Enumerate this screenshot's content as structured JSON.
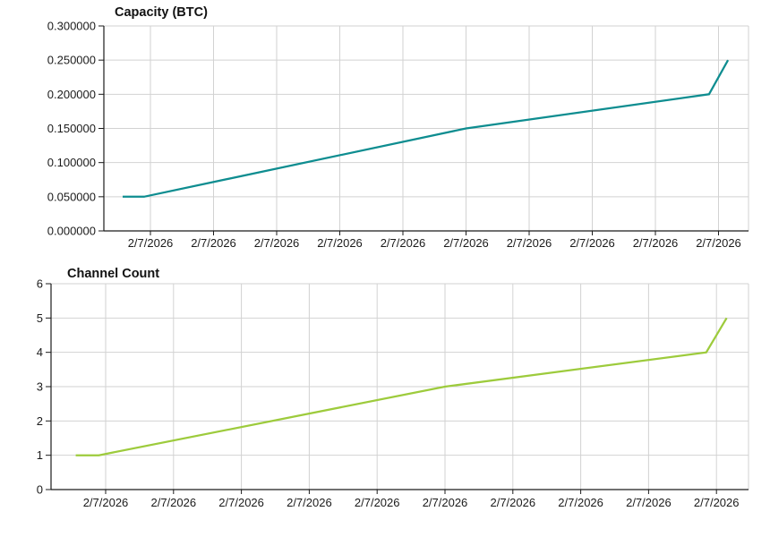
{
  "colors": {
    "background": "#ffffff",
    "grid": "#d2d2d2",
    "axis": "#1b1b1b",
    "text": "#1b1b1b",
    "capacity_line": "#0E8D90",
    "channel_line": "#9DCB3C"
  },
  "chart_data": [
    {
      "type": "line",
      "title": "Capacity (BTC)",
      "legend": "none",
      "grid": true,
      "x_axis": {
        "tick_labels": [
          "2/7/2026",
          "2/7/2026",
          "2/7/2026",
          "2/7/2026",
          "2/7/2026",
          "2/7/2026",
          "2/7/2026",
          "2/7/2026",
          "2/7/2026",
          "2/7/2026"
        ]
      },
      "y_axis": {
        "min": 0,
        "max": 0.3,
        "step": 0.05,
        "tick_labels": [
          "0.300000",
          "0.250000",
          "0.200000",
          "0.150000",
          "0.100000",
          "0.050000",
          "0.000000"
        ]
      },
      "series": [
        {
          "name": "Capacity (BTC)",
          "color": "#0E8D90",
          "points": [
            {
              "x": "2/7/2026",
              "tick_pos": -0.44,
              "y": 0.05
            },
            {
              "x": "2/7/2026",
              "tick_pos": -0.1,
              "y": 0.05
            },
            {
              "x": "2/7/2026",
              "tick_pos": 5.0,
              "y": 0.15
            },
            {
              "x": "2/7/2026",
              "tick_pos": 8.85,
              "y": 0.2
            },
            {
              "x": "2/7/2026",
              "tick_pos": 9.15,
              "y": 0.25
            }
          ]
        }
      ]
    },
    {
      "type": "line",
      "title": "Channel Count",
      "legend": "none",
      "grid": true,
      "x_axis": {
        "tick_labels": [
          "2/7/2026",
          "2/7/2026",
          "2/7/2026",
          "2/7/2026",
          "2/7/2026",
          "2/7/2026",
          "2/7/2026",
          "2/7/2026",
          "2/7/2026",
          "2/7/2026"
        ]
      },
      "y_axis": {
        "min": 0,
        "max": 6,
        "step": 1,
        "tick_labels": [
          "6",
          "5",
          "4",
          "3",
          "2",
          "1",
          "0"
        ]
      },
      "series": [
        {
          "name": "Channel Count",
          "color": "#9DCB3C",
          "points": [
            {
              "x": "2/7/2026",
              "tick_pos": -0.44,
              "y": 1
            },
            {
              "x": "2/7/2026",
              "tick_pos": -0.1,
              "y": 1
            },
            {
              "x": "2/7/2026",
              "tick_pos": 5.0,
              "y": 3
            },
            {
              "x": "2/7/2026",
              "tick_pos": 8.85,
              "y": 4
            },
            {
              "x": "2/7/2026",
              "tick_pos": 9.15,
              "y": 5
            }
          ]
        }
      ]
    }
  ]
}
